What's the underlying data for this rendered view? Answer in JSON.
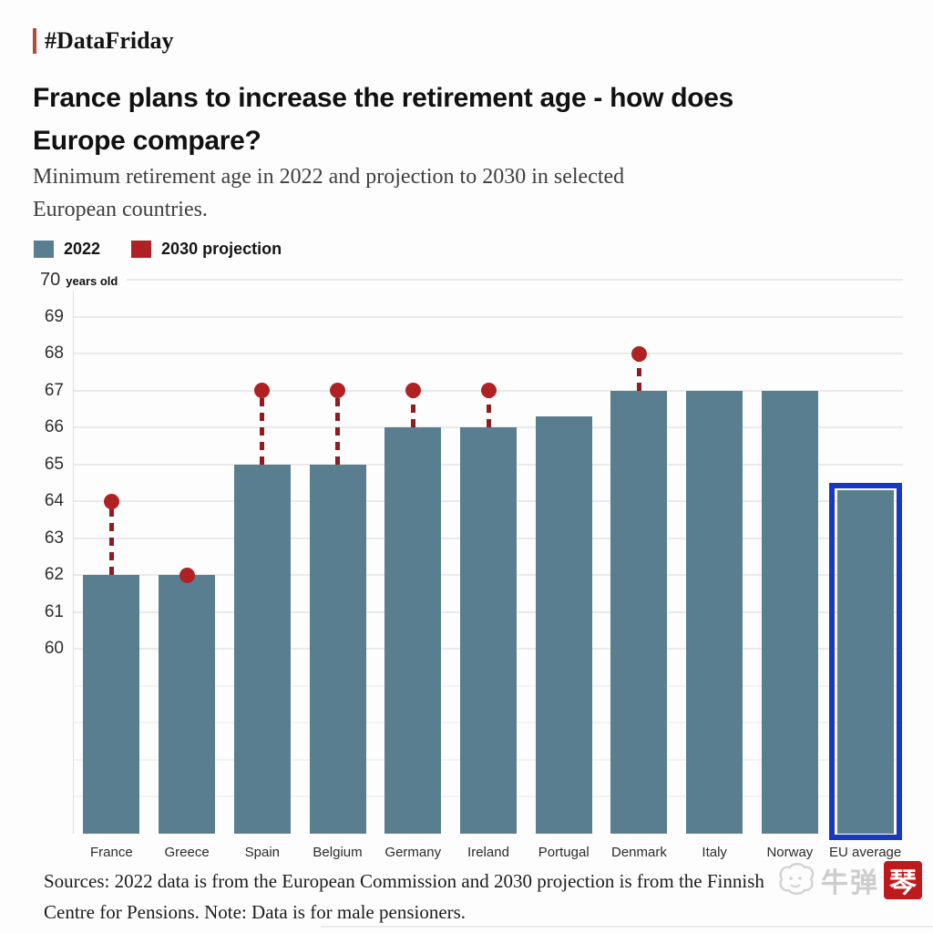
{
  "page": {
    "kicker": "#DataFriday",
    "title_line1": "France plans to increase the retirement age - how does",
    "title_line2": "Europe compare?",
    "subtitle_line1": "Minimum retirement age in 2022 and projection to 2030 in selected",
    "subtitle_line2": "European countries.",
    "source_line1": "Sources: 2022 data is from the European Commission and 2030 projection is from the Finnish",
    "source_line2": "Centre for Pensions. Note: Data is for male pensioners.",
    "watermark": {
      "text": "牛弹",
      "seal": "琴"
    }
  },
  "legend": {
    "items": [
      {
        "label": "2022",
        "color": "#587e90"
      },
      {
        "label": "2030 projection",
        "color": "#b02124"
      }
    ]
  },
  "chart_data": {
    "type": "bar",
    "title": "France plans to increase the retirement age - how does Europe compare?",
    "subtitle": "Minimum retirement age in 2022 and projection to 2030 in selected European countries.",
    "unit_top_tick": "70",
    "unit_label": "years old",
    "categories": [
      "France",
      "Greece",
      "Spain",
      "Belgium",
      "Germany",
      "Ireland",
      "Portugal",
      "Denmark",
      "Italy",
      "Norway",
      "EU average"
    ],
    "series": [
      {
        "name": "2022",
        "style": "bar",
        "color": "#587e90",
        "values": [
          62,
          62,
          65,
          65,
          66,
          66,
          66.3,
          67,
          67,
          67,
          64.3
        ]
      },
      {
        "name": "2030 projection",
        "style": "point",
        "color": "#b02124",
        "values": [
          64,
          62,
          67,
          67,
          67,
          67,
          null,
          68,
          null,
          null,
          null
        ]
      }
    ],
    "highlight": {
      "category": "EU average",
      "border_color": "#1838c2"
    },
    "ylim": [
      55,
      70
    ],
    "yticks": [
      60,
      61,
      62,
      63,
      64,
      65,
      66,
      67,
      68,
      69,
      70
    ],
    "gridlines": [
      56,
      57,
      58,
      59,
      60,
      61,
      62,
      63,
      64,
      65,
      66,
      67,
      68,
      69,
      70
    ],
    "grid": true,
    "legend_position": "top-left",
    "source": "Sources: 2022 data is from the European Commission and 2030 projection is from the Finnish Centre for Pensions. Note: Data is for male pensioners."
  },
  "colors": {
    "bar": "#587e90",
    "projection_dot": "#b02124",
    "projection_stem": "#8c1d21",
    "highlight_border": "#1838c2",
    "kicker_bar": "#b34a3a",
    "watermark_seal_bg": "#c0191c"
  }
}
